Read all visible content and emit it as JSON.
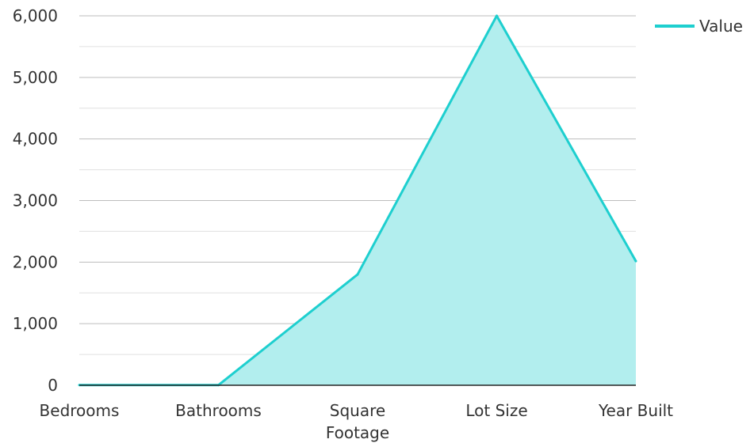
{
  "chart_data": {
    "type": "area",
    "categories": [
      "Bedrooms",
      "Bathrooms",
      "Square Footage",
      "Lot Size",
      "Year Built"
    ],
    "category_lines": [
      [
        "Bedrooms"
      ],
      [
        "Bathrooms"
      ],
      [
        "Square",
        "Footage"
      ],
      [
        "Lot Size"
      ],
      [
        "Year Built"
      ]
    ],
    "series": [
      {
        "name": "Value",
        "values": [
          4,
          3,
          1800,
          6000,
          2015
        ]
      }
    ],
    "ylim": [
      0,
      6000
    ],
    "yticks": [
      0,
      1000,
      2000,
      3000,
      4000,
      5000,
      6000
    ],
    "ytick_labels": [
      "0",
      "1,000",
      "2,000",
      "3,000",
      "4,000",
      "5,000",
      "6,000"
    ],
    "grid": true,
    "legend_position": "top-right",
    "colors": {
      "line": "#1ecfcf",
      "fill": "#b2eeee",
      "grid_major": "#bdbdbd",
      "grid_minor": "#e0e0e0",
      "axis": "#222222",
      "text": "#333333"
    }
  }
}
